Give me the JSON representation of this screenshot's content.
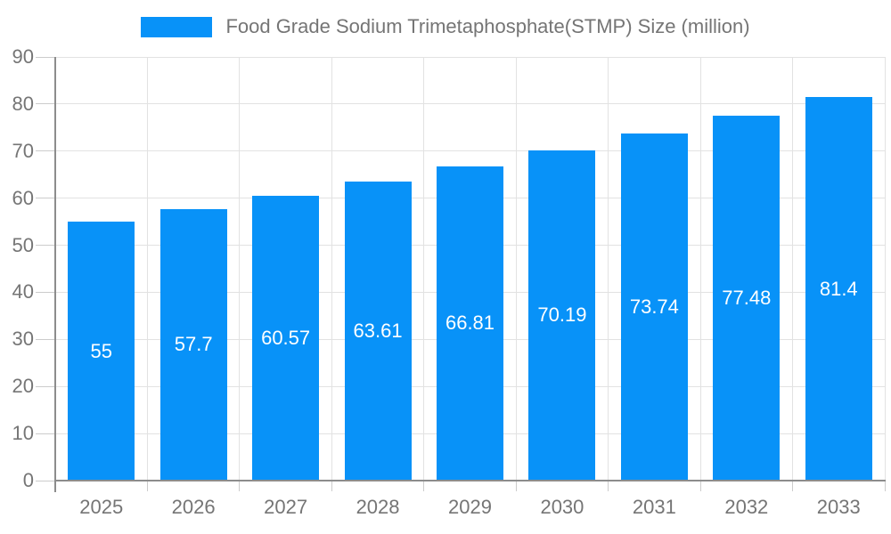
{
  "chart_data": {
    "type": "bar",
    "legend": {
      "label": "Food Grade Sodium Trimetaphosphate(STMP) Size (million)",
      "position": "top"
    },
    "categories": [
      "2025",
      "2026",
      "2027",
      "2028",
      "2029",
      "2030",
      "2031",
      "2032",
      "2033"
    ],
    "series": [
      {
        "name": "Food Grade Sodium Trimetaphosphate(STMP) Size (million)",
        "values": [
          55,
          57.7,
          60.57,
          63.61,
          66.81,
          70.19,
          73.74,
          77.48,
          81.4
        ]
      }
    ],
    "value_labels": [
      "55",
      "57.7",
      "60.57",
      "63.61",
      "66.81",
      "70.19",
      "73.74",
      "77.48",
      "81.4"
    ],
    "yticks": [
      "0",
      "10",
      "20",
      "30",
      "40",
      "50",
      "60",
      "70",
      "80",
      "90"
    ],
    "ylim": [
      0,
      90
    ],
    "xlabel": "",
    "ylabel": "",
    "grid": true,
    "colors": {
      "bar": "#0892f8",
      "grid": "#e2e2e2",
      "axis": "#8c8c8c",
      "tick": "#cccccc",
      "label_text": "#757575",
      "bar_label_text": "#ffffff",
      "background": "#ffffff"
    }
  }
}
